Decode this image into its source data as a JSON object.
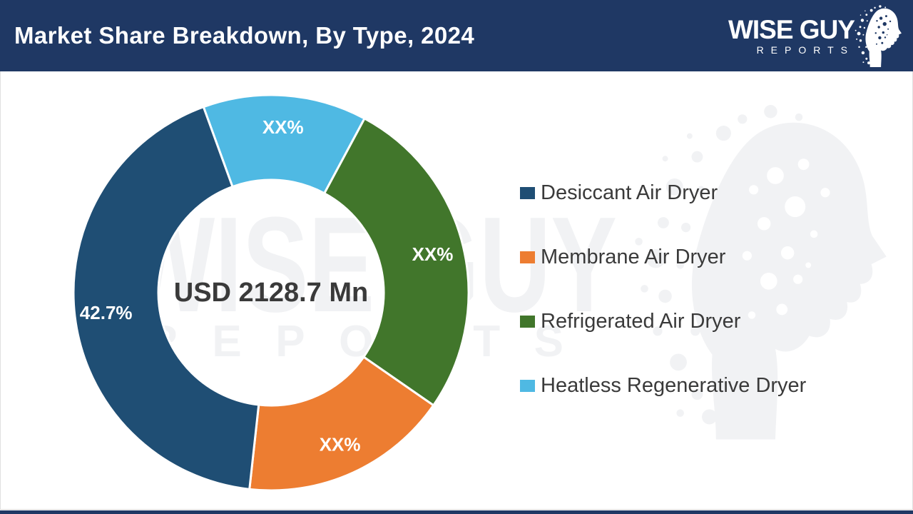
{
  "header": {
    "title": "Market Share Breakdown, By Type, 2024",
    "logo": {
      "line1": "WISE GUY",
      "line2": "REPORTS"
    }
  },
  "watermark": {
    "line1": "WISE GUY",
    "line2": "REPORTS"
  },
  "chart_data": {
    "type": "pie",
    "subtype": "donut",
    "title": "Market Share Breakdown, By Type, 2024",
    "year": "2024",
    "center_label": "USD 2128.7 Mn",
    "total_value": 2128.7,
    "unit": "USD Mn",
    "start_angle_deg": -20,
    "direction": "clockwise",
    "slices": [
      {
        "label": "Heatless Regenerative Dryer",
        "pct": 13.4,
        "display_label": "XX%",
        "color": "#4FB9E3"
      },
      {
        "label": "Refrigerated Air Dryer",
        "pct": 26.8,
        "display_label": "XX%",
        "color": "#41762B"
      },
      {
        "label": "Membrane Air Dryer",
        "pct": 17.1,
        "display_label": "XX%",
        "color": "#ED7D31"
      },
      {
        "label": "Desiccant Air Dryer",
        "pct": 42.7,
        "display_label": "42.7%",
        "color": "#1F4E74"
      }
    ],
    "legend": [
      {
        "label": "Desiccant Air Dryer",
        "color": "#1F4E74"
      },
      {
        "label": "Membrane Air Dryer",
        "color": "#ED7D31"
      },
      {
        "label": "Refrigerated Air Dryer",
        "color": "#41762B"
      },
      {
        "label": "Heatless Regenerative Dryer",
        "color": "#4FB9E3"
      }
    ],
    "legend_position": "right"
  },
  "colors": {
    "header_bg": "#1F3864",
    "footer_bar": "#1F3864",
    "watermark": "#F1F2F4",
    "title_text": "#FFFFFF",
    "center_text": "#3A3A3A",
    "legend_text": "#3A3A3A",
    "slice_label_text": "#FFFFFF"
  }
}
